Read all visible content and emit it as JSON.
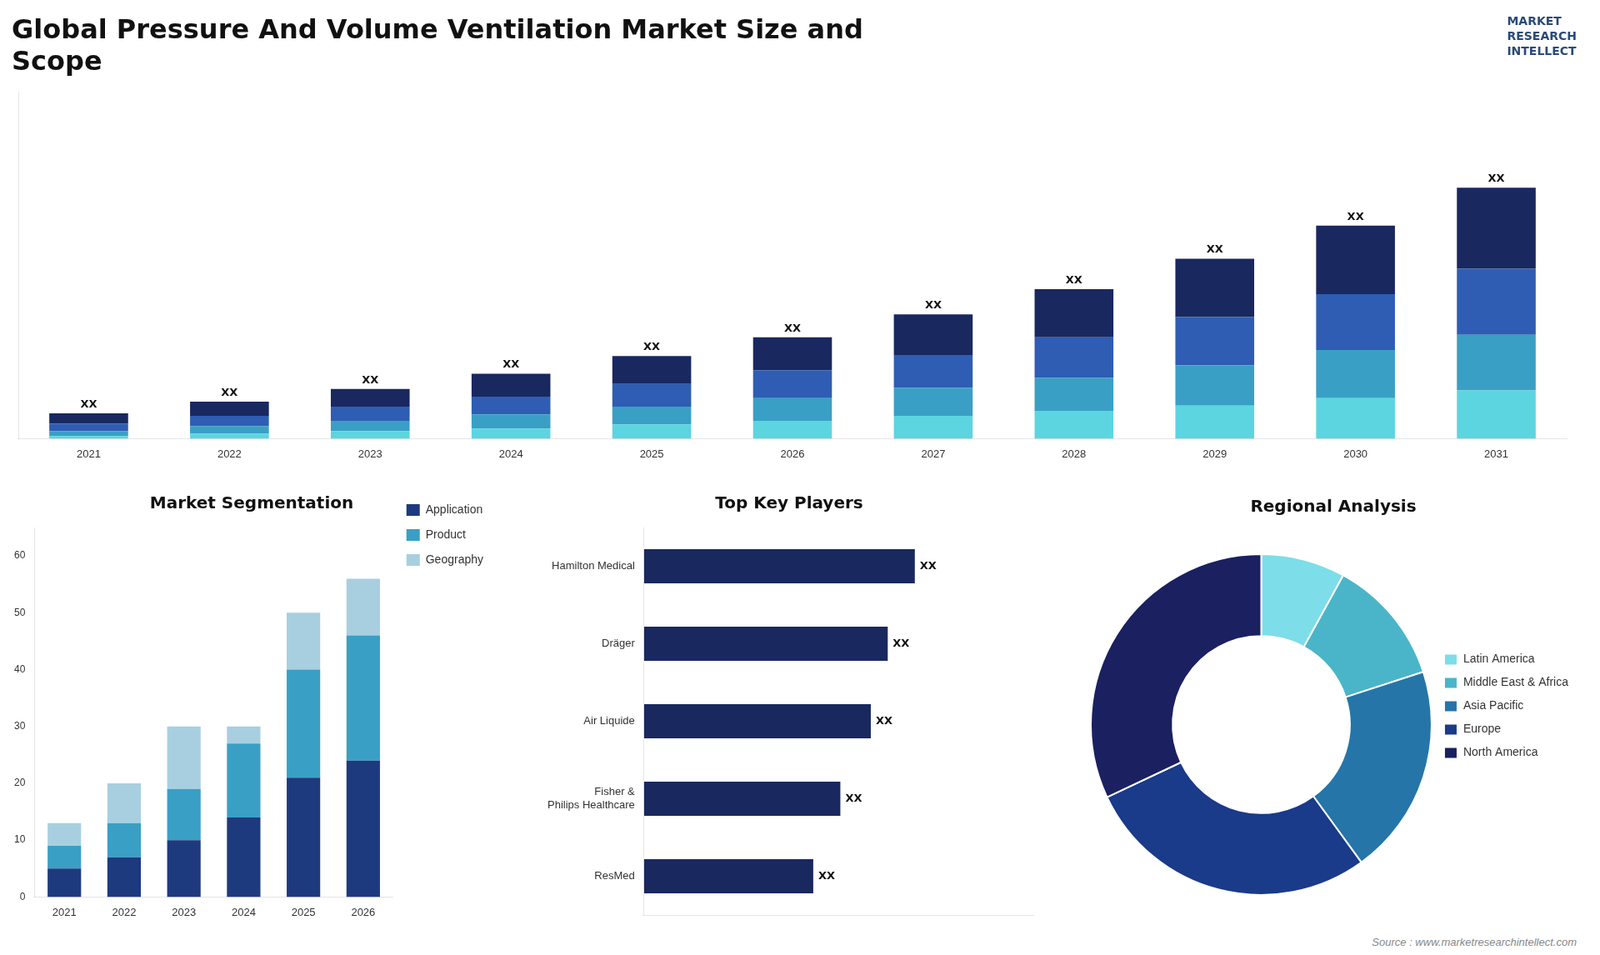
{
  "chart_data": [
    {
      "type": "bar",
      "title": "Global Pressure And Volume Ventilation Market Size and\nScope",
      "categories": [
        "2021",
        "2022",
        "2023",
        "2024",
        "2025",
        "2026",
        "2027",
        "2028",
        "2029",
        "2030",
        "2031"
      ],
      "series": [
        {
          "color": "#5cd5e0",
          "values": [
            0.5,
            1.0,
            1.5,
            2.0,
            2.8,
            3.5,
            4.5,
            5.5,
            6.5,
            8.0,
            9.5
          ]
        },
        {
          "color": "#3a9fc5",
          "values": [
            1.0,
            1.5,
            2.0,
            2.8,
            3.5,
            4.5,
            5.5,
            6.5,
            8.0,
            9.5,
            11.0
          ]
        },
        {
          "color": "#2e5db3",
          "values": [
            1.5,
            2.0,
            2.8,
            3.5,
            4.5,
            5.5,
            6.5,
            8.0,
            9.5,
            11.0,
            13.0
          ]
        },
        {
          "color": "#1a2860",
          "values": [
            2.0,
            2.8,
            3.5,
            4.5,
            5.5,
            6.5,
            8.0,
            9.5,
            11.5,
            13.5,
            16.0
          ],
          "value_labels": [
            "XX",
            "XX",
            "XX",
            "XX",
            "XX",
            "XX",
            "XX",
            "XX",
            "XX",
            "XX",
            "XX"
          ]
        }
      ],
      "stacked": true,
      "ylim": [
        0,
        68.31
      ],
      "tick_labels": "x",
      "grid": false,
      "annotations": [
        "MARKET\nRESEARCH\nINTELLECT"
      ]
    },
    {
      "type": "bar",
      "title": "Market Segmentation",
      "categories": [
        "2021",
        "2022",
        "2023",
        "2024",
        "2025",
        "2026"
      ],
      "series": [
        {
          "name": "Application",
          "color": "#1e3a7e",
          "values": [
            5,
            7,
            10,
            14,
            21,
            24
          ]
        },
        {
          "name": "Product",
          "color": "#3a9fc5",
          "values": [
            4,
            6,
            9,
            13,
            19,
            22
          ]
        },
        {
          "name": "Geography",
          "color": "#a8cfe0",
          "values": [
            4,
            7,
            11,
            3,
            10,
            10
          ]
        }
      ],
      "stacked": true,
      "ylim": [
        0,
        65
      ],
      "yticks": [
        0,
        10,
        20,
        30,
        40,
        50,
        60
      ],
      "grid": false,
      "legend": "right"
    },
    {
      "type": "bar",
      "title": "Top Key Players",
      "orientation": "horizontal",
      "categories": [
        "Hamilton Medical",
        "Dräger",
        "Air Liquide",
        "Fisher &\nPhilips Healthcare",
        "ResMed"
      ],
      "values": [
        0.8,
        0.72,
        0.67,
        0.58,
        0.5
      ],
      "value_labels": [
        "XX",
        "XX",
        "XX",
        "XX",
        "XX"
      ],
      "color": "#1a2860",
      "xlim": [
        0,
        1.15
      ],
      "tick_labels": "y",
      "grid": false
    },
    {
      "type": "doughnut",
      "title": "Regional Analysis",
      "categories": [
        "Latin America",
        "Middle East &\nAfrica",
        "Asia Pacific",
        "Europe",
        "North America"
      ],
      "values": [
        8,
        12,
        20,
        28,
        32
      ],
      "colors": [
        "#7ddde8",
        "#4ab5c9",
        "#2575a8",
        "#1a3a8a",
        "#1a2060"
      ],
      "legend": "right",
      "annotations": [
        "Source : www.marketresearchintellect.com"
      ]
    }
  ]
}
